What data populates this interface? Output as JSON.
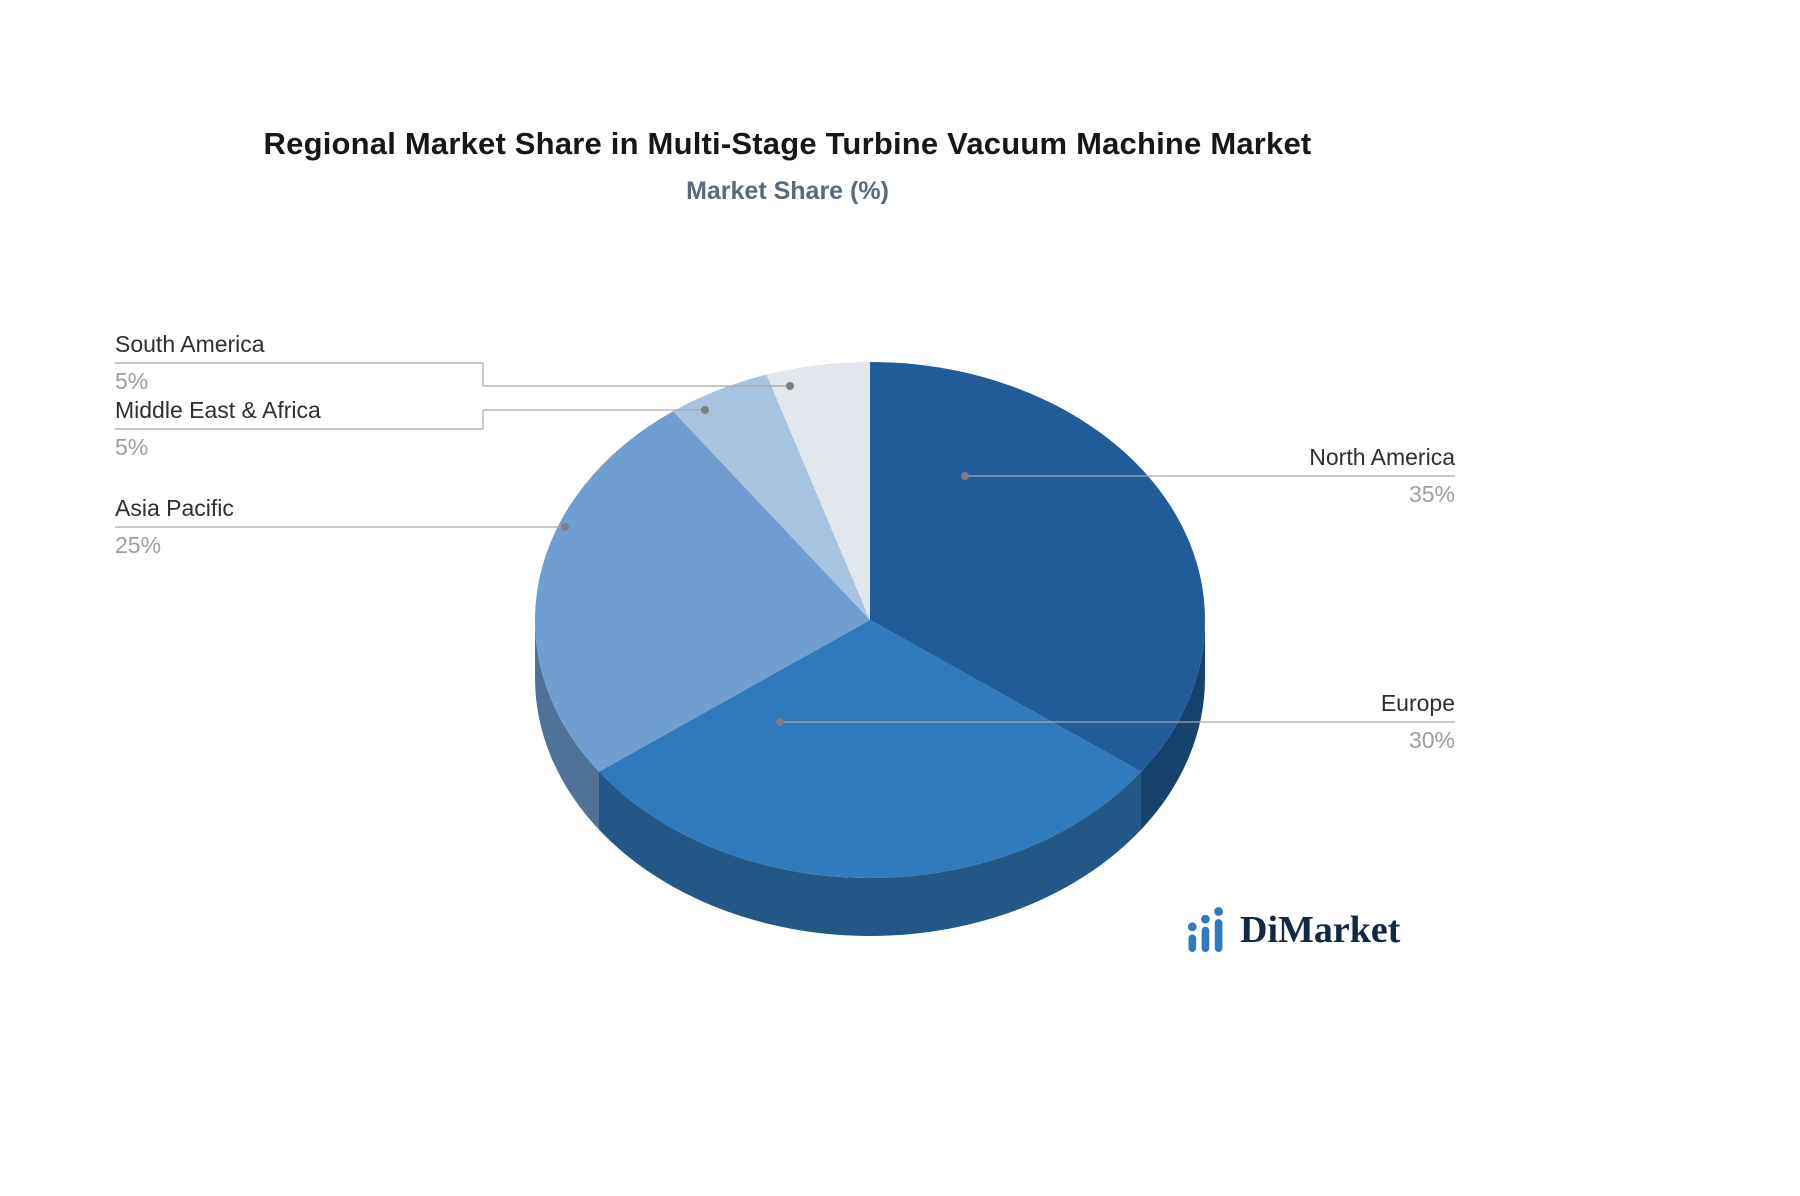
{
  "title": "Regional Market Share in Multi-Stage Turbine Vacuum Machine Market",
  "subtitle": "Market Share (%)",
  "brand": {
    "name": "DiMarket",
    "icon": "bar-chart-icon",
    "icon_color": "#2e7abc",
    "text_color": "#132843"
  },
  "chart_data": {
    "type": "pie",
    "style": "3d",
    "title": "Regional Market Share in Multi-Stage Turbine Vacuum Machine Market",
    "subtitle": "Market Share (%)",
    "unit": "%",
    "categories": [
      "North America",
      "Europe",
      "Asia Pacific",
      "Middle East & Africa",
      "South America"
    ],
    "values": [
      35,
      30,
      25,
      5,
      5
    ],
    "value_labels": [
      "35%",
      "30%",
      "25%",
      "5%",
      "5%"
    ],
    "colors": [
      "#1f5c99",
      "#2e7abc",
      "#6f9fd0",
      "#a7c3de",
      "#e2e7ed"
    ],
    "start_angle_deg": 0,
    "direction": "clockwise",
    "legend_position": "none",
    "labels_outside": true
  }
}
